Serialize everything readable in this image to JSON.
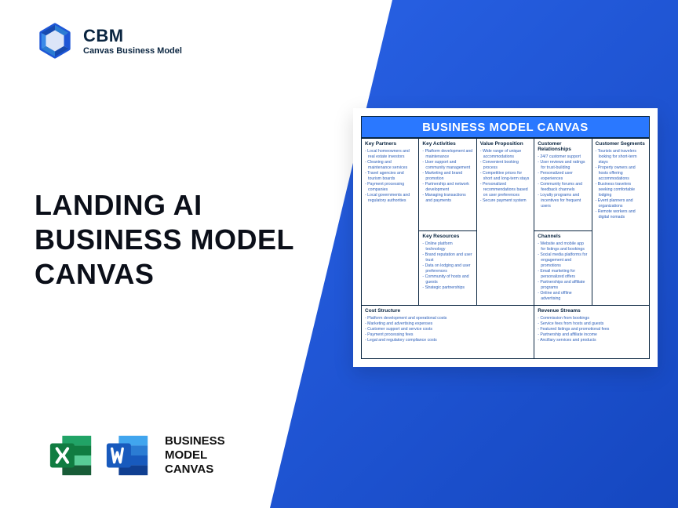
{
  "colors": {
    "gradient_start": "#2962e6",
    "gradient_end": "#1547c0",
    "brand_dark": "#0a2540",
    "accent_blue": "#2a78ff",
    "list_text": "#2a5db8",
    "headline": "#0b0f19",
    "excel_dark": "#107c41",
    "excel_light": "#21a366",
    "word_dark": "#185abd",
    "word_light": "#2b7cd3",
    "bg": "#ffffff"
  },
  "logo": {
    "brand": "CBM",
    "tagline": "Canvas Business Model"
  },
  "headline": {
    "l1": "LANDING AI",
    "l2": "BUSINESS MODEL",
    "l3": "CANVAS"
  },
  "bmc_label": {
    "l1": "BUSINESS",
    "l2": "MODEL",
    "l3": "CANVAS"
  },
  "canvas": {
    "title": "BUSINESS MODEL CANVAS",
    "cells": {
      "key_partners": {
        "title": "Key Partners",
        "items": [
          "Local homeowners and real estate investors",
          "Cleaning and maintenance services",
          "Travel agencies and tourism boards",
          "Payment processing companies",
          "Local governments and regulatory authorities"
        ]
      },
      "key_activities": {
        "title": "Key Activities",
        "items": [
          "Platform development and maintenance",
          "User support and community management",
          "Marketing and brand promotion",
          "Partnership and network development",
          "Managing transactions and payments"
        ]
      },
      "key_resources": {
        "title": "Key Resources",
        "items": [
          "Online platform technology",
          "Brand reputation and user trust",
          "Data on lodging and user preferences",
          "Community of hosts and guests",
          "Strategic partnerships"
        ]
      },
      "value_proposition": {
        "title": "Value Proposition",
        "items": [
          "Wide range of unique accommodations",
          "Convenient booking process",
          "Competitive prices for short and long-term stays",
          "Personalized recommendations based on user preferences",
          "Secure payment system"
        ]
      },
      "customer_relationships": {
        "title": "Customer Relationships",
        "items": [
          "24/7 customer support",
          "User reviews and ratings for trust-building",
          "Personalized user experiences",
          "Community forums and feedback channels",
          "Loyalty programs and incentives for frequent users"
        ]
      },
      "channels": {
        "title": "Channels",
        "items": [
          "Website and mobile app for listings and bookings",
          "Social media platforms for engagement and promotions",
          "Email marketing for personalized offers",
          "Partnerships and affiliate programs",
          "Online and offline advertising"
        ]
      },
      "customer_segments": {
        "title": "Customer Segments",
        "items": [
          "Tourists and travelers looking for short-term stays",
          "Property owners and hosts offering accommodations",
          "Business travelers seeking comfortable lodging",
          "Event planners and organizations",
          "Remote workers and digital nomads"
        ]
      },
      "cost_structure": {
        "title": "Cost Structure",
        "items": [
          "Platform development and operational costs",
          "Marketing and advertising expenses",
          "Customer support and service costs",
          "Payment processing fees",
          "Legal and regulatory compliance costs"
        ]
      },
      "revenue_streams": {
        "title": "Revenue Streams",
        "items": [
          "Commission from bookings",
          "Service fees from hosts and guests",
          "Featured listings and promotional fees",
          "Partnership and affiliate income",
          "Ancillary services and products"
        ]
      }
    }
  }
}
